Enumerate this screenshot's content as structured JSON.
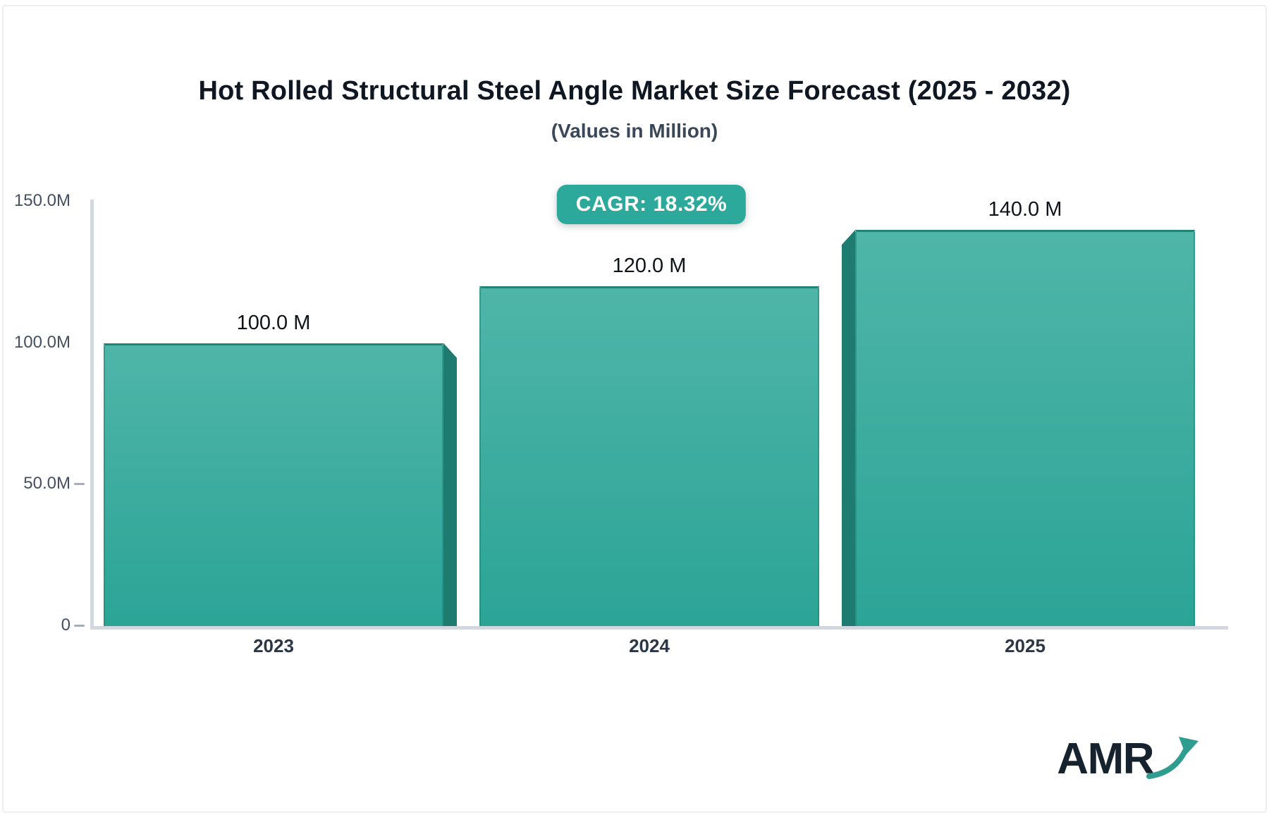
{
  "chart": {
    "title": "Hot Rolled Structural Steel Angle Market Size Forecast (2025 - 2032)",
    "subtitle": "(Values in Million)",
    "cagr_label": "CAGR: 18.32%"
  },
  "chart_data": {
    "type": "bar",
    "title": "Hot Rolled Structural Steel Angle Market Size Forecast (2025 - 2032)",
    "subtitle": "(Values in Million)",
    "cagr_percent": 18.32,
    "categories": [
      "2023",
      "2024",
      "2025"
    ],
    "values": [
      100.0,
      120.0,
      140.0
    ],
    "value_labels": [
      "100.0 M",
      "120.0 M",
      "140.0 M"
    ],
    "unit": "Million",
    "xlabel": "",
    "ylabel": "",
    "ylim": [
      0,
      150
    ],
    "yticks": [
      {
        "label": "150.0M",
        "value": 150,
        "dash": false
      },
      {
        "label": "100.0M",
        "value": 100,
        "dash": false
      },
      {
        "label": "50.0M",
        "value": 50,
        "dash": true
      },
      {
        "label": "0",
        "value": 0,
        "dash": true
      }
    ],
    "grid": false,
    "legend": "none",
    "bar_3d_side": [
      "right",
      "none",
      "left"
    ]
  },
  "colors": {
    "title_color": "#0F1722",
    "subtitle_color": "#394759",
    "badge_bg": "#2DA99B",
    "badge_text": "#FFFFFF",
    "bar_top": "#4FB5A9",
    "bar_bottom": "#2BA496",
    "bar_edge": "#1E8578",
    "bar_side": "#1E7B70",
    "axis": "#D3D7DE",
    "dash": "#A6ADB8",
    "tick_color": "#44505F",
    "xlabel_color": "#2B3745",
    "value_label_color": "#101418",
    "logo_color": "#16222E",
    "logo_arrow": "#2E9D90"
  },
  "logo": {
    "text": "AMR"
  }
}
